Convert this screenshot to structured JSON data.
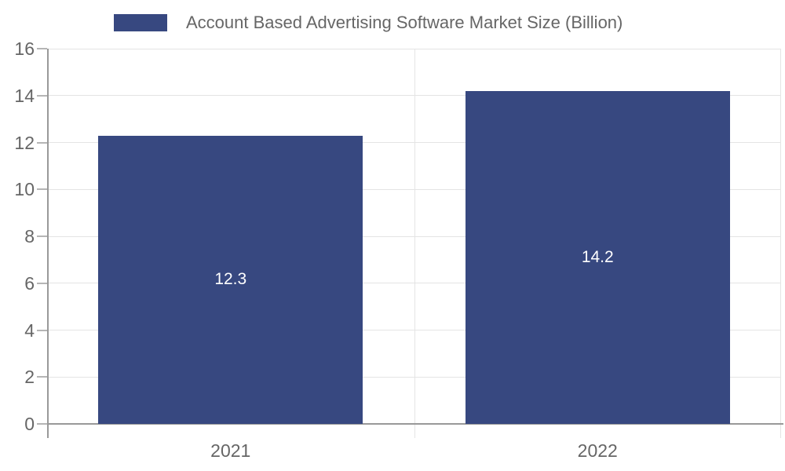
{
  "legend": {
    "label": "Account Based Advertising Software Market Size (Billion)"
  },
  "chart_data": {
    "type": "bar",
    "title": "Account Based Advertising Software Market Size (Billion)",
    "categories": [
      "2021",
      "2022"
    ],
    "series": [
      {
        "name": "Account Based Advertising Software Market Size (Billion)",
        "values": [
          12.3,
          14.2
        ]
      }
    ],
    "data_labels": [
      "12.3",
      "14.2"
    ],
    "xlabel": "",
    "ylabel": "",
    "ylim": [
      0,
      16
    ],
    "yticks": [
      0,
      2,
      4,
      6,
      8,
      10,
      12,
      14,
      16
    ],
    "grid": true,
    "legend_position": "top",
    "data_label_position": "inside-center",
    "colors": {
      "bar": "#374880",
      "axis": "#999999",
      "gridline": "#e4e4e4",
      "tick_label": "#666666",
      "data_label": "#ffffff"
    }
  }
}
